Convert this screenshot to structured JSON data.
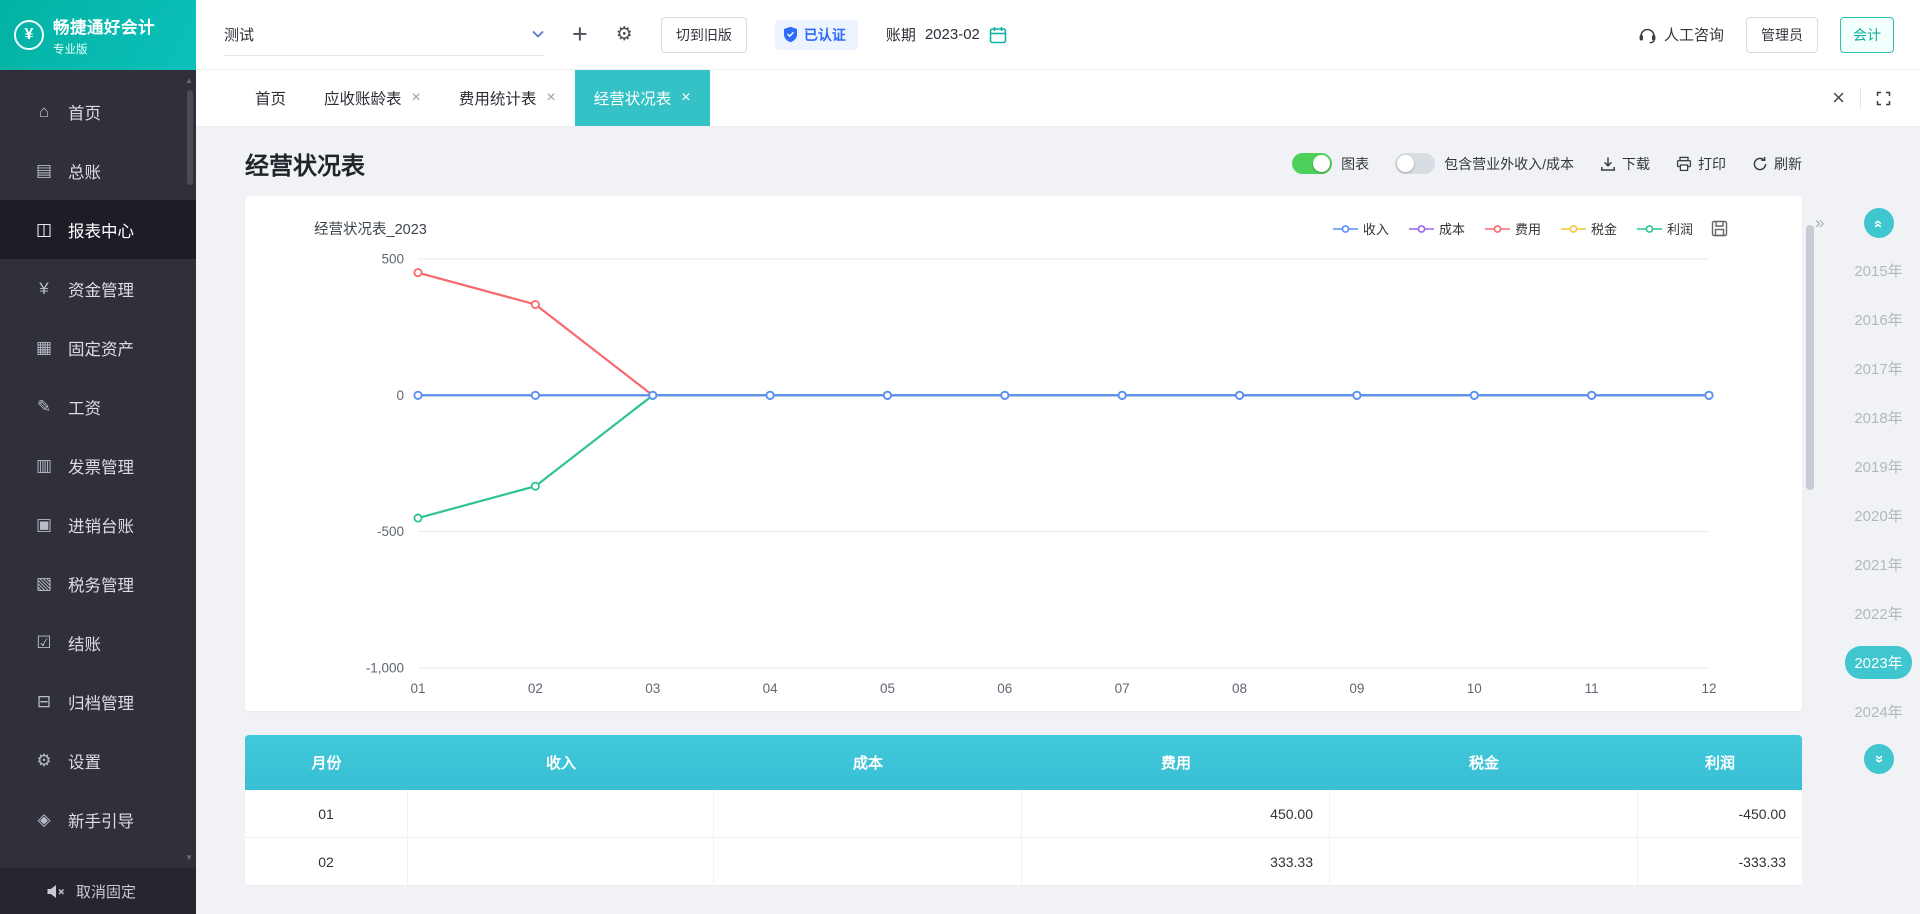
{
  "brand": {
    "name": "畅捷通好会计",
    "edition": "专业版",
    "currency_glyph": "¥"
  },
  "glyphs": {
    "plus": "+",
    "gear": "⚙",
    "close": "×",
    "double_chevron": "«",
    "panel_expand": "»",
    "scroll_up": "▲",
    "scroll_down": "▼"
  },
  "topbar": {
    "account_value": "测试",
    "switch_old_label": "切到旧版",
    "certified_label": "已认证",
    "period_label": "账期",
    "period_value": "2023-02",
    "support_label": "人工咨询",
    "admin_label": "管理员",
    "role_label": "会计"
  },
  "tabs": [
    {
      "label": "首页"
    },
    {
      "label": "应收账龄表"
    },
    {
      "label": "费用统计表"
    },
    {
      "label": "经营状况表"
    }
  ],
  "sidebar": {
    "items": [
      {
        "icon": "home-icon",
        "glyph": "⌂",
        "label": "首页"
      },
      {
        "icon": "general-ledger-icon",
        "glyph": "▤",
        "label": "总账"
      },
      {
        "icon": "report-center-icon",
        "glyph": "◫",
        "label": "报表中心"
      },
      {
        "icon": "funds-icon",
        "glyph": "¥",
        "label": "资金管理"
      },
      {
        "icon": "fixed-assets-icon",
        "glyph": "▦",
        "label": "固定资产"
      },
      {
        "icon": "payroll-icon",
        "glyph": "✎",
        "label": "工资"
      },
      {
        "icon": "invoice-icon",
        "glyph": "▥",
        "label": "发票管理"
      },
      {
        "icon": "inventory-ledger-icon",
        "glyph": "▣",
        "label": "进销台账"
      },
      {
        "icon": "tax-icon",
        "glyph": "▧",
        "label": "税务管理"
      },
      {
        "icon": "closing-icon",
        "glyph": "☑",
        "label": "结账"
      },
      {
        "icon": "archive-icon",
        "glyph": "⊟",
        "label": "归档管理"
      },
      {
        "icon": "settings-icon",
        "glyph": "⚙",
        "label": "设置"
      },
      {
        "icon": "beginner-guide-icon",
        "glyph": "◈",
        "label": "新手引导"
      },
      {
        "icon": "clipped-item-icon",
        "glyph": "▢",
        "label": ""
      }
    ],
    "unpin_label": "取消固定"
  },
  "page": {
    "title": "经营状况表",
    "chart_toggle_label": "图表",
    "include_toggle_label": "包含营业外收入/成本",
    "download_label": "下载",
    "print_label": "打印",
    "refresh_label": "刷新"
  },
  "chart_data": {
    "type": "line",
    "title": "经营状况表_2023",
    "categories": [
      "01",
      "02",
      "03",
      "04",
      "05",
      "06",
      "07",
      "08",
      "09",
      "10",
      "11",
      "12"
    ],
    "series": [
      {
        "name": "收入",
        "color": "#5b8ff9",
        "values": [
          0,
          0,
          0,
          0,
          0,
          0,
          0,
          0,
          0,
          0,
          0,
          0
        ]
      },
      {
        "name": "成本",
        "color": "#9a66e8",
        "values": [
          0,
          0,
          0,
          0,
          0,
          0,
          0,
          0,
          0,
          0,
          0,
          0
        ]
      },
      {
        "name": "费用",
        "color": "#f8696b",
        "values": [
          450,
          333.33,
          0,
          0,
          0,
          0,
          0,
          0,
          0,
          0,
          0,
          0
        ]
      },
      {
        "name": "税金",
        "color": "#f6c53d",
        "values": [
          0,
          0,
          0,
          0,
          0,
          0,
          0,
          0,
          0,
          0,
          0,
          0
        ]
      },
      {
        "name": "利润",
        "color": "#2fc48d",
        "values": [
          -450,
          -333.33,
          0,
          0,
          0,
          0,
          0,
          0,
          0,
          0,
          0,
          0
        ]
      }
    ],
    "ylim": [
      -1000,
      500
    ],
    "yticks": [
      500,
      0,
      -500,
      -1000
    ],
    "grid": true,
    "legend_position": "top-right",
    "xlabel": "",
    "ylabel": ""
  },
  "table": {
    "headers": [
      "月份",
      "收入",
      "成本",
      "费用",
      "税金",
      "利润"
    ],
    "rows": [
      {
        "cells": [
          "01",
          "",
          "",
          "450.00",
          "",
          "-450.00"
        ]
      },
      {
        "cells": [
          "02",
          "",
          "",
          "333.33",
          "",
          "-333.33"
        ]
      }
    ]
  },
  "year_panel": {
    "years": [
      "2015年",
      "2016年",
      "2017年",
      "2018年",
      "2019年",
      "2020年",
      "2021年",
      "2022年",
      "2023年",
      "2024年"
    ],
    "active": "2023年"
  }
}
